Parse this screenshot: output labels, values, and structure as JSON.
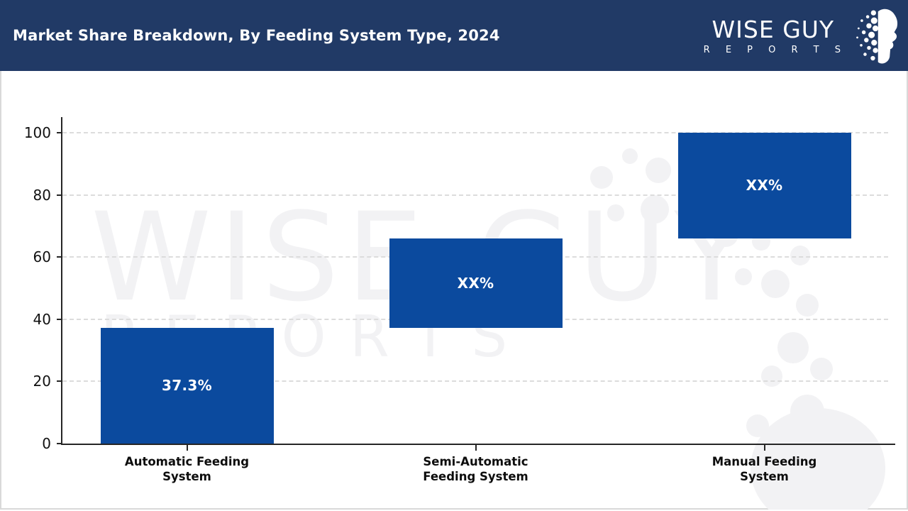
{
  "header": {
    "title": "Market Share Breakdown, By Feeding System Type, 2024",
    "logo": {
      "brand_line1": "WISE GUY",
      "brand_line2": "R E P O R T S",
      "mark": "dotted-head-profile-icon"
    }
  },
  "watermark": {
    "line1": "WISE GUY",
    "line2": "R E P O R T S"
  },
  "colors": {
    "header_bg": "#213a66",
    "bar": "#0b4a9e",
    "bar_label": "#ffffff",
    "watermark": "#f2f2f4",
    "gridline": "#dcdcdc",
    "axis": "#262626"
  },
  "chart_data": {
    "type": "bar",
    "subtype": "waterfall-floating-segments",
    "title": "Market Share Breakdown, By Feeding System Type, 2024",
    "categories": [
      [
        "Automatic Feeding",
        "System"
      ],
      [
        "Semi-Automatic",
        "Feeding System"
      ],
      [
        "Manual Feeding",
        "System"
      ]
    ],
    "segments": [
      {
        "label": "37.3%",
        "start": 0,
        "end": 37.3
      },
      {
        "label": "XX%",
        "start": 37.3,
        "end": 66
      },
      {
        "label": "XX%",
        "start": 66,
        "end": 100
      }
    ],
    "yticks": [
      0,
      20,
      40,
      60,
      80,
      100
    ],
    "ylim": [
      0,
      105
    ],
    "xlabel": "",
    "ylabel": "",
    "grid": "horizontal-dashed",
    "legend": "none"
  }
}
